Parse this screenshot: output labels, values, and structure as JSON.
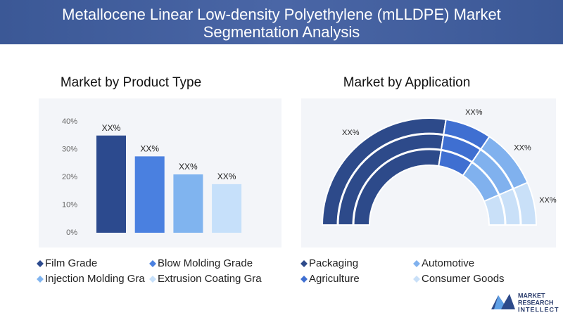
{
  "title": [
    "Metallocene Linear Low-density Polyethylene (mLLDPE) Market",
    "Segmentation Analysis"
  ],
  "chart_data": [
    {
      "type": "bar",
      "title": "Market by Product Type",
      "categories": [
        "Film Grade",
        "Blow Molding Grade",
        "Injection Molding Gra",
        "Extrusion Coating Gra"
      ],
      "values": [
        35,
        27.5,
        21,
        17.5
      ],
      "value_labels": [
        "XX%",
        "XX%",
        "XX%",
        "XX%"
      ],
      "colors": [
        "#2c4a8e",
        "#4a80e0",
        "#80b4ef",
        "#c6e0fa"
      ],
      "ylim": [
        0,
        40
      ],
      "yticks": [
        {
          "value": 0,
          "label": "0%"
        },
        {
          "value": 10,
          "label": "10%"
        },
        {
          "value": 20,
          "label": "20%"
        },
        {
          "value": 30,
          "label": "30%"
        },
        {
          "value": 40,
          "label": "40%"
        }
      ]
    },
    {
      "type": "donut",
      "title": "Market by Application",
      "categories": [
        "Packaging",
        "Agriculture",
        "Automotive",
        "Consumer Goods"
      ],
      "values": [
        55,
        14,
        18,
        13
      ],
      "value_labels": [
        "XX%",
        "XX%",
        "XX%",
        "XX%"
      ],
      "colors": [
        "#2d4a8a",
        "#3f6fd1",
        "#80b1ee",
        "#c9e0f8"
      ]
    }
  ],
  "logo": [
    "MARKET",
    "RESEARCH",
    "INTELLECT"
  ]
}
